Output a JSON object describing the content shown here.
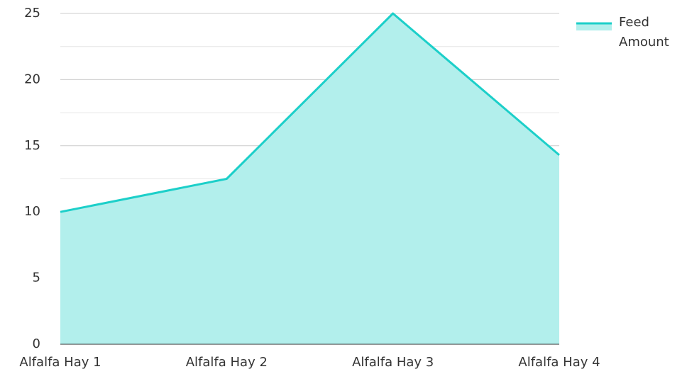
{
  "chart_data": {
    "type": "area",
    "categories": [
      "Alfalfa Hay 1",
      "Alfalfa Hay 2",
      "Alfalfa Hay 3",
      "Alfalfa Hay 4"
    ],
    "series": [
      {
        "name": "Feed Amount",
        "color": "#1ccfc9",
        "fill": "#b2efec",
        "values": [
          10,
          12.5,
          25,
          14.3
        ]
      }
    ],
    "ylim": [
      0,
      25
    ],
    "yticks": [
      0,
      5,
      10,
      15,
      20,
      25
    ],
    "minor_yticks": [
      2.5,
      7.5,
      12.5,
      17.5,
      22.5
    ],
    "grid": true,
    "legend": "top-right"
  }
}
